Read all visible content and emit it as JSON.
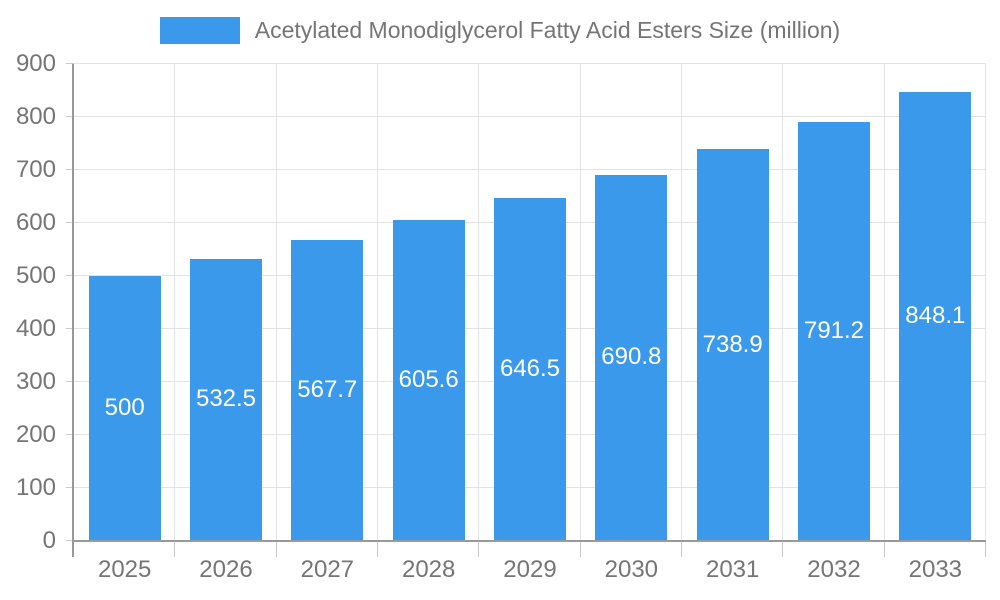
{
  "legend": {
    "label": "Acetylated Monodiglycerol Fatty Acid Esters Size (million)"
  },
  "chart_data": {
    "type": "bar",
    "title": "Acetylated Monodiglycerol Fatty Acid Esters Size (million)",
    "xlabel": "",
    "ylabel": "",
    "categories": [
      "2025",
      "2026",
      "2027",
      "2028",
      "2029",
      "2030",
      "2031",
      "2032",
      "2033"
    ],
    "values": [
      500,
      532.5,
      567.7,
      605.6,
      646.5,
      690.8,
      738.9,
      791.2,
      848.1
    ],
    "value_labels": [
      "500",
      "532.5",
      "567.7",
      "605.6",
      "646.5",
      "690.8",
      "738.9",
      "791.2",
      "848.1"
    ],
    "yticks": [
      0,
      100,
      200,
      300,
      400,
      500,
      600,
      700,
      800,
      900
    ],
    "ylim": [
      0,
      900
    ],
    "grid": true,
    "legend_position": "top-center",
    "colors": {
      "bar": "#3b99ec",
      "value_label": "#ffffff",
      "axis_text": "#757575",
      "grid_line": "#e3e3e3",
      "axis_line": "#999999",
      "tick_line": "#c9c9c9",
      "background": "#ffffff"
    }
  }
}
